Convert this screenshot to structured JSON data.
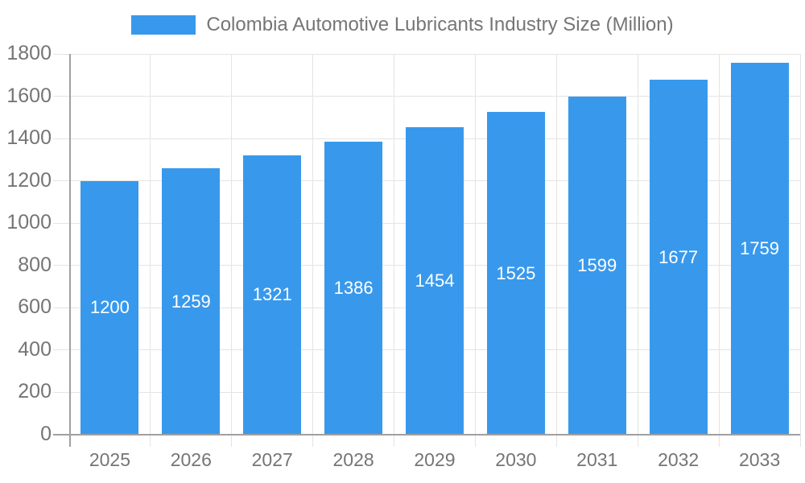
{
  "legend": {
    "label": "Colombia Automotive Lubricants Industry Size (Million)"
  },
  "chart_data": {
    "type": "bar",
    "title": "Colombia Automotive Lubricants Industry Size (Million)",
    "categories": [
      "2025",
      "2026",
      "2027",
      "2028",
      "2029",
      "2030",
      "2031",
      "2032",
      "2033"
    ],
    "values": [
      1200,
      1259,
      1321,
      1386,
      1454,
      1525,
      1599,
      1677,
      1759
    ],
    "xlabel": "",
    "ylabel": "",
    "ylim": [
      0,
      1800
    ],
    "yticks": [
      0,
      200,
      400,
      600,
      800,
      1000,
      1200,
      1400,
      1600,
      1800
    ],
    "grid": true,
    "legend_position": "top",
    "value_label_position": "inside-center",
    "colors": {
      "bar": "#3899EC",
      "value_label": "#FFFFFF",
      "axis_text": "#757575",
      "grid_line": "#E4E4E4",
      "axis_line": "#A0A0A0",
      "background": "#FFFFFF"
    }
  }
}
